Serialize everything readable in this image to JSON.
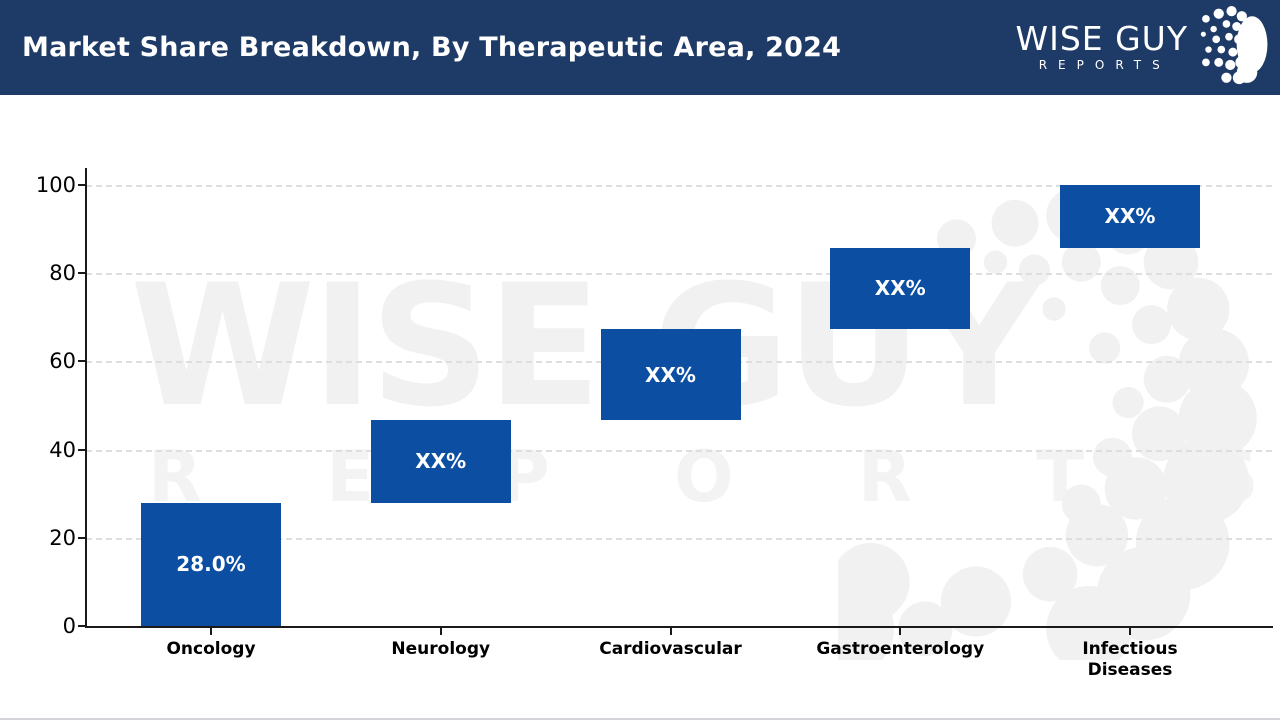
{
  "header": {
    "title": "Market Share Breakdown, By Therapeutic Area, 2024",
    "logo": {
      "line1": "WISE GUY",
      "line2": "REPORTS"
    }
  },
  "watermark": {
    "line1": "WISE GUY",
    "line2": "R E P O R T S"
  },
  "colors": {
    "header_bg": "#1e3a66",
    "bar": "#0b4ea2",
    "bar_label": "#ffffff",
    "gridline": "#dedede",
    "watermark": "#f1f1f2"
  },
  "chart_data": {
    "type": "bar",
    "variant": "waterfall",
    "title": "Market Share Breakdown, By Therapeutic Area, 2024",
    "categories": [
      "Oncology",
      "Neurology",
      "Cardiovascular",
      "Gastroenterology",
      "Infectious Diseases"
    ],
    "categories_display": [
      "Oncology",
      "Neurology",
      "Cardiovascular",
      "Gastroenterology",
      "Infectious\nDiseases"
    ],
    "bars": [
      {
        "category": "Oncology",
        "start": 0,
        "end": 28.0,
        "value": 28.0,
        "label": "28.0%"
      },
      {
        "category": "Neurology",
        "start": 28.0,
        "end": 46.6,
        "value": 18.6,
        "label": "XX%"
      },
      {
        "category": "Cardiovascular",
        "start": 46.6,
        "end": 67.4,
        "value": 20.8,
        "label": "XX%"
      },
      {
        "category": "Gastroenterology",
        "start": 67.4,
        "end": 85.8,
        "value": 18.4,
        "label": "XX%"
      },
      {
        "category": "Infectious Diseases",
        "start": 85.8,
        "end": 100.0,
        "value": 14.2,
        "label": "XX%"
      }
    ],
    "ylim": [
      0,
      100
    ],
    "yticks": [
      0,
      20,
      40,
      60,
      80,
      100
    ],
    "grid": {
      "axis": "y",
      "style": "dashed"
    },
    "legend": null
  }
}
